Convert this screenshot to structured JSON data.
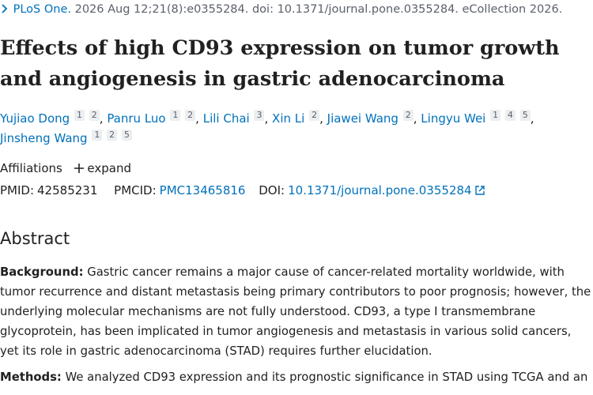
{
  "journal": {
    "name": "PLoS One.",
    "citation": "2026 Aug 12;21(8):e0355284. doi: 10.1371/journal.pone.0355284. eCollection 2026."
  },
  "title": "Effects of high CD93 expression on tumor growth and angiogenesis in gastric adenocarcinoma",
  "authors": [
    {
      "name": "Yujiao Dong",
      "affiliations": [
        "1",
        "2"
      ]
    },
    {
      "name": "Panru Luo",
      "affiliations": [
        "1",
        "2"
      ]
    },
    {
      "name": "Lili Chai",
      "affiliations": [
        "3"
      ]
    },
    {
      "name": "Xin Li",
      "affiliations": [
        "2"
      ]
    },
    {
      "name": "Jiawei Wang",
      "affiliations": [
        "2"
      ]
    },
    {
      "name": "Lingyu Wei",
      "affiliations": [
        "1",
        "4",
        "5"
      ]
    },
    {
      "name": "Jinsheng Wang",
      "affiliations": [
        "1",
        "2",
        "5"
      ]
    }
  ],
  "affiliations": {
    "label": "Affiliations",
    "toggle": "expand"
  },
  "identifiers": {
    "pmid_label": "PMID:",
    "pmid": "42585231",
    "pmcid_label": "PMCID:",
    "pmcid": "PMC13465816",
    "doi_label": "DOI:",
    "doi": "10.1371/journal.pone.0355284"
  },
  "abstract": {
    "heading": "Abstract",
    "sections": [
      {
        "label": "Background:",
        "text": "Gastric cancer remains a major cause of cancer-related mortality worldwide, with tumor recurrence and distant metastasis being primary contributors to poor prognosis; however, the underlying molecular mechanisms are not fully understood. CD93, a type I transmembrane glycoprotein, has been implicated in tumor angiogenesis and metastasis in various solid cancers, yet its role in gastric adenocarcinoma (STAD) requires further elucidation."
      },
      {
        "label": "Methods:",
        "text": "We analyzed CD93 expression and its prognostic significance in STAD using TCGA and an"
      }
    ]
  }
}
